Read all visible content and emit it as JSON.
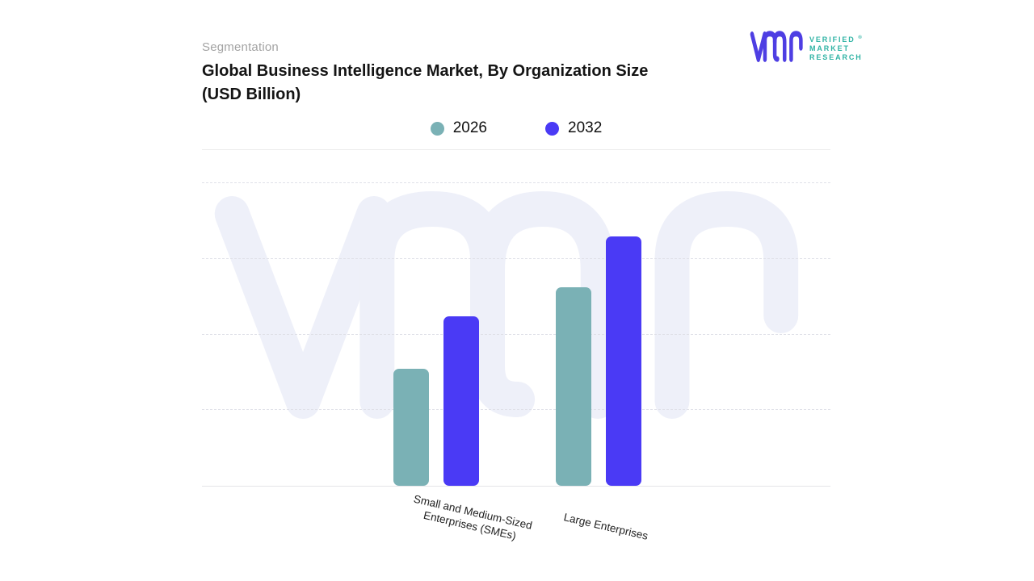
{
  "header": {
    "eyebrow": "Segmentation",
    "title_line1": "Global Business Intelligence Market, By Organization Size",
    "title_line2": "(USD Billion)"
  },
  "logo": {
    "mark": "vmr-monogram",
    "mark_color": "#4e3ee3",
    "text_color": "#2fb3a4",
    "lines": [
      "VERIFIED",
      "MARKET",
      "RESEARCH"
    ],
    "registered": "®"
  },
  "chart_data": {
    "type": "bar",
    "title": "Global Business Intelligence Market, By Organization Size (USD Billion)",
    "categories": [
      "Small and Medium-Sized Enterprises (SMEs)",
      "Large Enterprises"
    ],
    "series": [
      {
        "name": "2026",
        "color": "#7ab1b5",
        "values": [
          15.5,
          26.2
        ]
      },
      {
        "name": "2032",
        "color": "#4a3af5",
        "values": [
          22.4,
          33.0
        ]
      }
    ],
    "xlabel": "",
    "ylabel": "",
    "ylim": [
      0,
      40
    ],
    "y_tick_labels": [],
    "grid": "horizontal-dashed",
    "legend_position": "top-center",
    "watermark": "vmr",
    "values_are_estimates_from_gridlines": true
  }
}
